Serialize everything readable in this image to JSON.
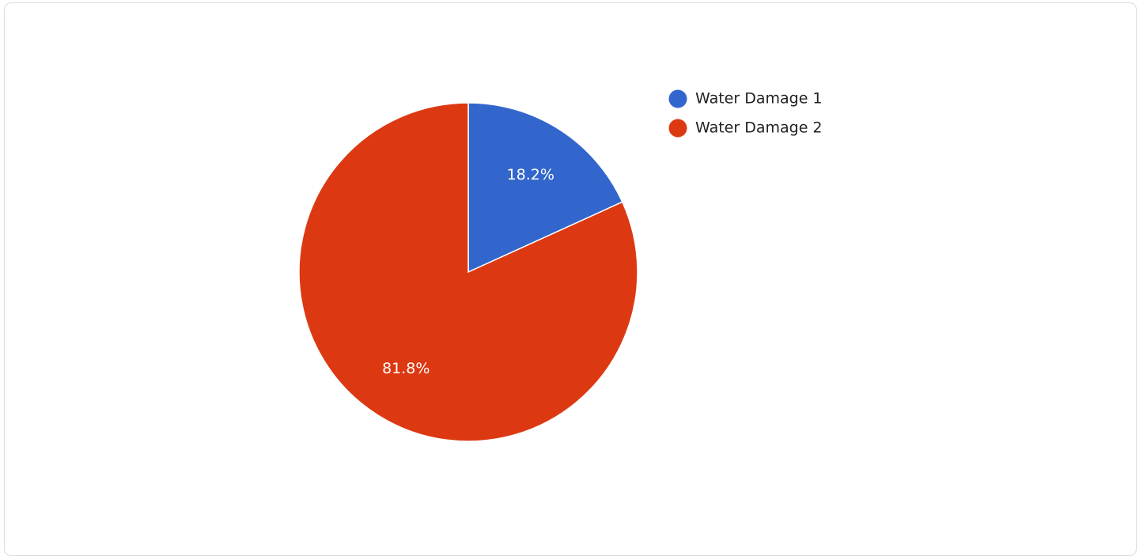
{
  "chart_data": {
    "type": "pie",
    "categories": [
      "Water Damage 1",
      "Water Damage 2"
    ],
    "values": [
      18.2,
      81.8
    ],
    "slice_labels": [
      "18.2%",
      "81.8%"
    ],
    "colors": [
      "#3366cc",
      "#dc3912"
    ],
    "legend_position": "right",
    "title": ""
  }
}
